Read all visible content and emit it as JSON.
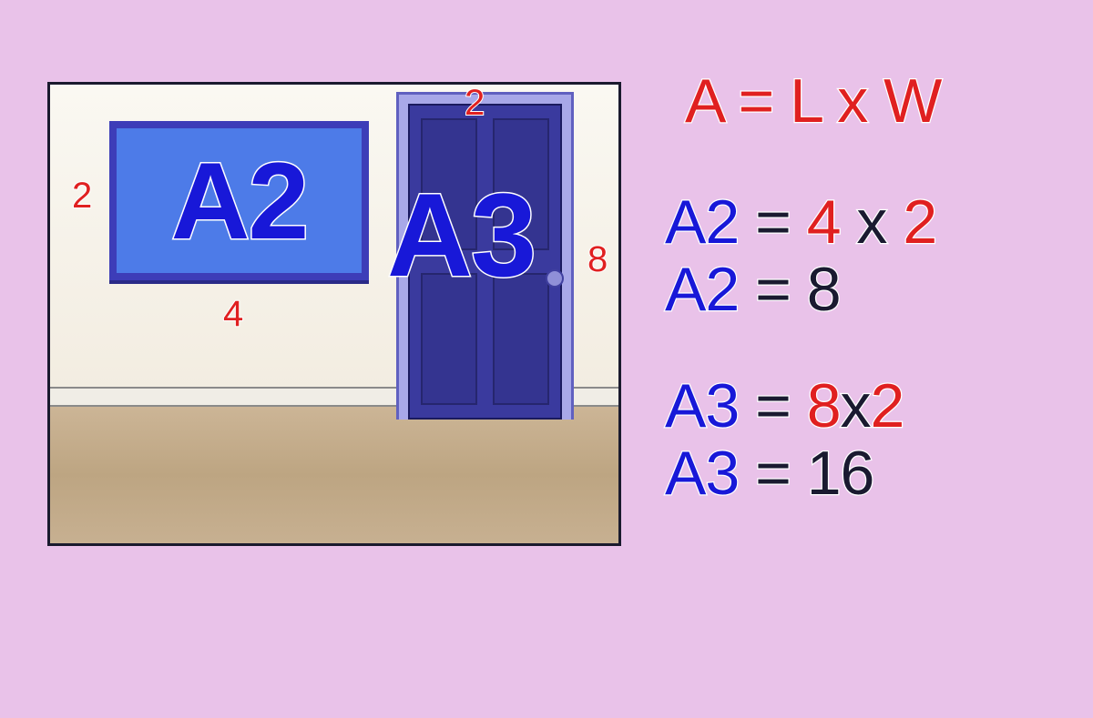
{
  "background_color": "#e9c2e9",
  "scene": {
    "frame_border_color": "#1a1a2e",
    "wall_color": "#f5f0e8",
    "floor_color": "#ccb596",
    "baseboard_color": "#f0ede6",
    "window": {
      "label": "A2",
      "fill_color": "#4d7be8",
      "frame_color": "#3d3db8",
      "label_color": "#1818d8",
      "label_stroke": "#ffffff",
      "label_fontsize": 120
    },
    "door": {
      "label": "A3",
      "frame_color": "#a8a8e8",
      "door_color": "#3a3a9e",
      "panel_color": "#343490",
      "knob_color": "#9090d8",
      "label_color": "#1818d8",
      "label_fontsize": 130
    },
    "dimensions": {
      "door_top": "2",
      "window_left": "2",
      "window_bottom": "4",
      "door_right": "8",
      "color": "#e02020",
      "fontsize": 40
    }
  },
  "equations": {
    "fontsize": 68,
    "stroke_color": "#ffffff",
    "colors": {
      "red": "#e02020",
      "blue": "#1818d8",
      "dark": "#1a1a30"
    },
    "formula": {
      "parts": [
        {
          "text": "A = L x W",
          "color": "red"
        }
      ]
    },
    "a2": {
      "line1": [
        {
          "text": "A2",
          "color": "blue"
        },
        {
          "text": " = ",
          "color": "dark"
        },
        {
          "text": "4",
          "color": "red"
        },
        {
          "text": " x ",
          "color": "dark"
        },
        {
          "text": "2",
          "color": "red"
        }
      ],
      "line2": [
        {
          "text": "A2",
          "color": "blue"
        },
        {
          "text": " = ",
          "color": "dark"
        },
        {
          "text": "8",
          "color": "dark"
        }
      ]
    },
    "a3": {
      "line1": [
        {
          "text": "A3",
          "color": "blue"
        },
        {
          "text": " = ",
          "color": "dark"
        },
        {
          "text": "8",
          "color": "red"
        },
        {
          "text": "x",
          "color": "dark"
        },
        {
          "text": "2",
          "color": "red"
        }
      ],
      "line2": [
        {
          "text": "A3",
          "color": "blue"
        },
        {
          "text": " = ",
          "color": "dark"
        },
        {
          "text": "16",
          "color": "dark"
        }
      ]
    }
  }
}
